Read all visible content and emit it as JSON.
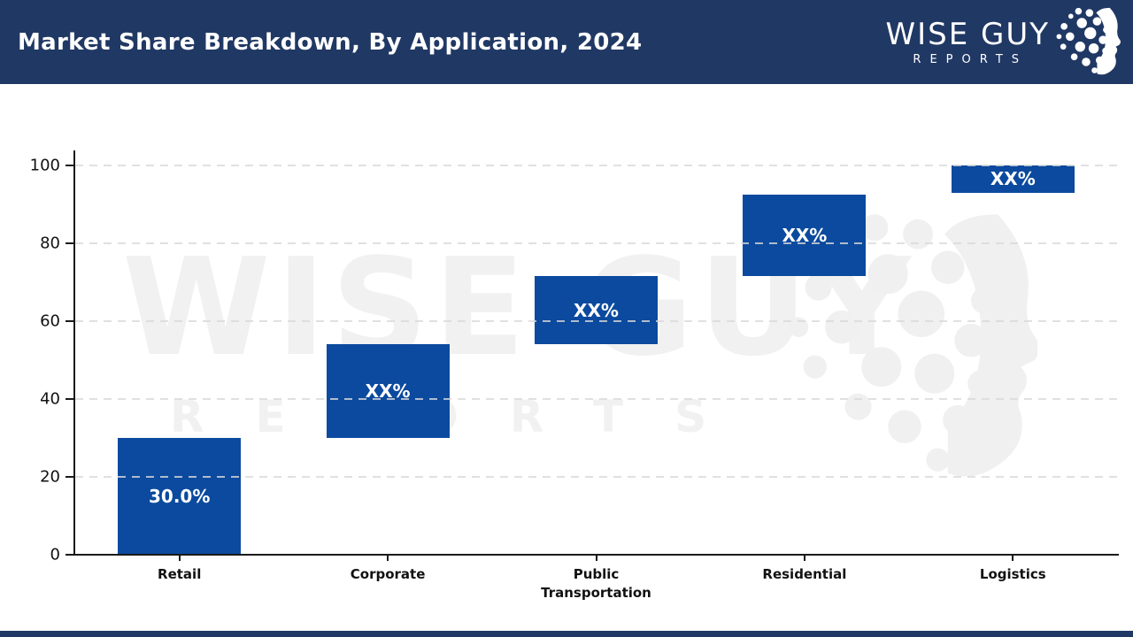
{
  "header": {
    "title": "Market Share Breakdown, By Application, 2024",
    "bg_color": "#203864",
    "logo": {
      "line1": "WISE GUY",
      "line2": "REPORTS"
    }
  },
  "watermark": {
    "line1": "WISE GUY",
    "line2": "REPORTS"
  },
  "chart_data": {
    "type": "bar",
    "variant": "floating-waterfall",
    "title": "Market Share Breakdown, By Application, 2024",
    "categories": [
      "Retail",
      "Corporate",
      "Public Transportation",
      "Residential",
      "Logistics"
    ],
    "bar_ranges": [
      [
        0,
        30
      ],
      [
        30,
        54
      ],
      [
        54,
        71.5
      ],
      [
        71.5,
        92.5
      ],
      [
        93,
        100
      ]
    ],
    "bar_labels": [
      "30.0%",
      "XX%",
      "XX%",
      "XX%",
      "XX%"
    ],
    "xlabel": "",
    "ylabel": "",
    "ylim": [
      0,
      100
    ],
    "yticks": [
      0,
      20,
      40,
      60,
      80,
      100
    ],
    "grid": "dashed horizontal, light gray, drawn over bars",
    "legend": "none",
    "bar_color": "#0b4a9e",
    "bar_label_color": "#ffffff",
    "axis_color": "#1a1a1a"
  },
  "footer": {
    "bg_color": "#203864"
  }
}
